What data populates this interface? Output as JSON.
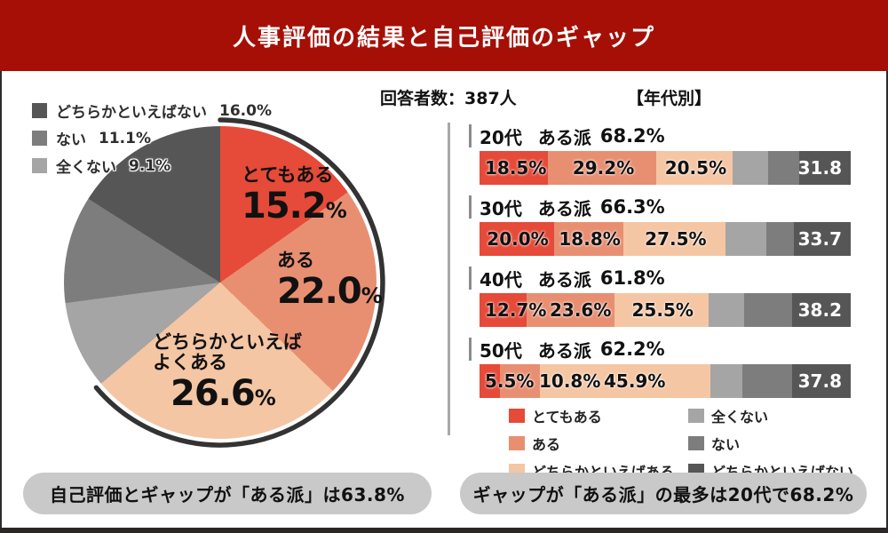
{
  "header": {
    "title": "人事評価の結果と自己評価のギャップ"
  },
  "meta": {
    "respondents": "回答者数：387人",
    "section_label": "【年代別】"
  },
  "colors": {
    "header_red": "#a50f06",
    "totemo_aru": "#e64a38",
    "aru": "#e88f72",
    "dochira_aru": "#f4c6a4",
    "mattaku_nai": "#a5a5a5",
    "nai": "#7d7d7d",
    "dochira_nai": "#565656",
    "arc": "#333333",
    "pill": "#c9c9c9",
    "footer": "#2b2727"
  },
  "chart_data": [
    {
      "type": "pie",
      "start": "top",
      "direction": "clockwise",
      "slices": [
        {
          "label": "とてもある",
          "value": 15.2,
          "color": "#e64a38"
        },
        {
          "label": "ある",
          "value": 22.0,
          "color": "#e88f72"
        },
        {
          "label": "どちらかといえばよくある",
          "value": 26.6,
          "color": "#f4c6a4"
        },
        {
          "label": "全くない",
          "value": 9.1,
          "color": "#a5a5a5"
        },
        {
          "label": "ない",
          "value": 11.1,
          "color": "#7d7d7d"
        },
        {
          "label": "どちらかといえばない",
          "value": 16.0,
          "color": "#565656"
        }
      ],
      "highlight_arc": {
        "from_percent": 0,
        "to_percent": 63.8,
        "color": "#333333"
      }
    },
    {
      "type": "bar",
      "orientation": "horizontal",
      "stacked": true,
      "categories": [
        "20代",
        "30代",
        "40代",
        "50代"
      ],
      "series": [
        {
          "name": "とてもある",
          "color": "#e64a38",
          "values": [
            18.5,
            20.0,
            12.7,
            5.5
          ],
          "labeled": true
        },
        {
          "name": "ある",
          "color": "#e88f72",
          "values": [
            29.2,
            18.8,
            23.6,
            10.8
          ],
          "labeled": true
        },
        {
          "name": "どちらかといえばある",
          "color": "#f4c6a4",
          "values": [
            20.5,
            27.5,
            25.5,
            45.9
          ],
          "labeled": true
        },
        {
          "name": "全くない",
          "color": "#a5a5a5",
          "values": [
            9.5,
            10.9,
            9.6,
            8.6
          ],
          "estimated": true
        },
        {
          "name": "ない",
          "color": "#7d7d7d",
          "values": [
            8.5,
            7.4,
            12.8,
            13.4
          ],
          "estimated": true
        },
        {
          "name": "どちらかといえばない",
          "color": "#565656",
          "values": [
            13.8,
            15.4,
            15.8,
            15.8
          ],
          "estimated": true
        }
      ],
      "group_totals": {
        "label": "ある派",
        "values": [
          68.2,
          66.3,
          61.8,
          62.2
        ]
      },
      "others_totals": {
        "values": [
          31.8,
          33.7,
          38.2,
          37.8
        ]
      }
    }
  ],
  "pie_legend": [
    {
      "label": "どちらかといえばない",
      "value": "16.0%",
      "color": "#565656"
    },
    {
      "label": "ない",
      "value": "11.1%",
      "color": "#7d7d7d"
    },
    {
      "label": "全くない",
      "value": "9.1%",
      "color": "#a5a5a5"
    }
  ],
  "pie_callouts": [
    {
      "label": "とてもある",
      "value": "15.2",
      "unit": "%"
    },
    {
      "label": "ある",
      "value": "22.0",
      "unit": "%"
    },
    {
      "label": "どちらかといえばよくある",
      "value": "26.6",
      "unit": "%"
    }
  ],
  "bar_legend": {
    "left": [
      {
        "label": "とてもある",
        "color": "#e64a38"
      },
      {
        "label": "ある",
        "color": "#e88f72"
      },
      {
        "label": "どちらかといえばある",
        "color": "#f4c6a4"
      }
    ],
    "right": [
      {
        "label": "全くない",
        "color": "#a5a5a5"
      },
      {
        "label": "ない",
        "color": "#7d7d7d"
      },
      {
        "label": "どちらかといえばない",
        "color": "#565656"
      }
    ]
  },
  "callouts": [
    {
      "text": "自己評価とギャップが「ある派」は63.8%"
    },
    {
      "text": "ギャップが「ある派」の最多は20代で68.2%"
    }
  ]
}
